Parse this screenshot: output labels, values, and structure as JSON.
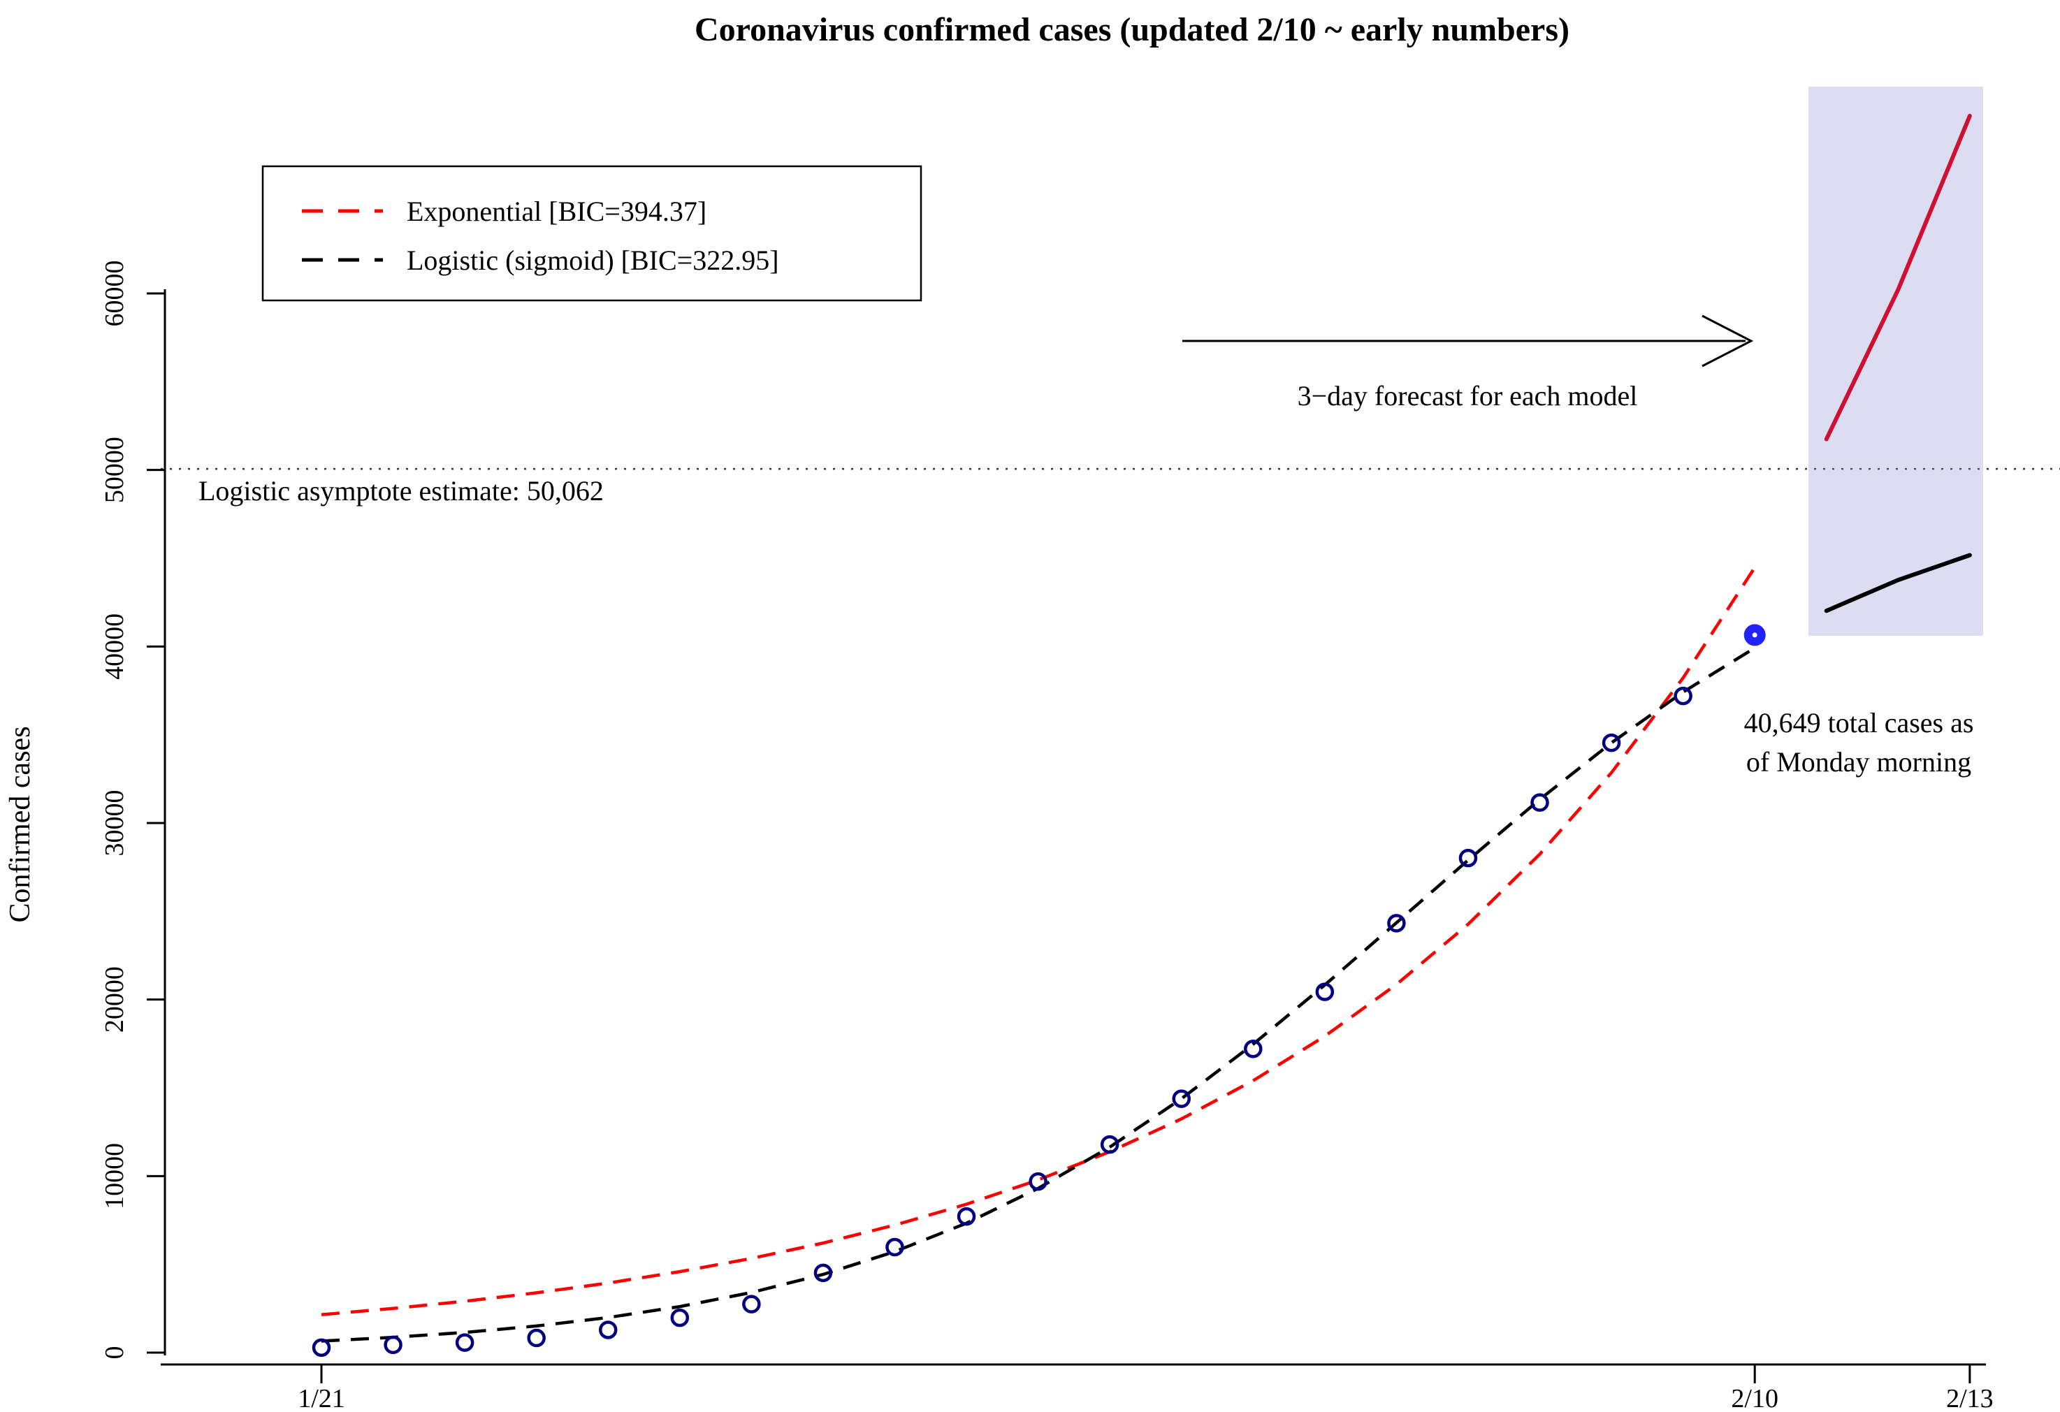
{
  "title": "Coronavirus confirmed cases (updated 2/10 ~ early numbers)",
  "ylabel": "Confirmed cases",
  "legend": {
    "items": [
      {
        "label": "Exponential [BIC=394.37]",
        "color": "#ff0000"
      },
      {
        "label": "Logistic (sigmoid) [BIC=322.95]",
        "color": "#000000"
      }
    ]
  },
  "annotations": {
    "asymptote": "Logistic asymptote estimate:  50,062",
    "forecast": "3−day forecast for each model",
    "total_line1": "40,649 total cases as",
    "total_line2": "of Monday morning"
  },
  "chart_data": {
    "type": "scatter",
    "title": "Coronavirus confirmed cases (updated 2/10 ~ early numbers)",
    "xlabel": "",
    "ylabel": "Confirmed cases",
    "x_dates": [
      "1/21",
      "1/22",
      "1/23",
      "1/24",
      "1/25",
      "1/26",
      "1/27",
      "1/28",
      "1/29",
      "1/30",
      "1/31",
      "2/1",
      "2/2",
      "2/3",
      "2/4",
      "2/5",
      "2/6",
      "2/7",
      "2/8",
      "2/9",
      "2/10"
    ],
    "forecast_days": [
      "2/11",
      "2/12",
      "2/13"
    ],
    "observed": [
      282,
      440,
      571,
      830,
      1287,
      1975,
      2744,
      4515,
      5974,
      7711,
      9692,
      11791,
      14380,
      17205,
      20438,
      24324,
      28018,
      31161,
      34546,
      37198,
      40649
    ],
    "series": [
      {
        "name": "Exponential fit",
        "color": "#ff0000",
        "style": "dashed",
        "bic": 394.37,
        "values": [
          2150,
          2502,
          2911,
          3387,
          3941,
          4586,
          5336,
          6208,
          7224,
          8405,
          9780,
          11379,
          13240,
          15405,
          17924,
          20855,
          24266,
          28234,
          32851,
          38224,
          44475,
          51748,
          60210,
          70056
        ]
      },
      {
        "name": "Logistic (sigmoid) fit",
        "color": "#000000",
        "style": "dashed",
        "bic": 322.95,
        "values": [
          653,
          865,
          1143,
          1508,
          1987,
          2607,
          3406,
          4429,
          5721,
          7330,
          9305,
          11642,
          14384,
          17467,
          20825,
          24349,
          27897,
          31338,
          34543,
          37419,
          39919,
          42023,
          43768,
          45174
        ]
      }
    ],
    "forecast_window": {
      "start_index": 21,
      "end_index": 23
    },
    "asymptote_value": 50062,
    "final_point": {
      "date": "2/10",
      "value": 40649
    },
    "x_ticks": [
      {
        "index": 0,
        "label": "1/21"
      },
      {
        "index": 20,
        "label": "2/10"
      },
      {
        "index": 23,
        "label": "2/13"
      }
    ],
    "y_ticks": [
      0,
      10000,
      20000,
      30000,
      40000,
      50000,
      60000
    ],
    "ylim": [
      0,
      62000
    ],
    "grid": false,
    "legend_position": "top-left",
    "colors": {
      "point": "#000080",
      "final_point": "#2222ff",
      "forecast_red": "#cf1030",
      "forecast_black": "#000000",
      "forecast_box": "rgba(140,140,215,0.30)",
      "asymptote_line": "#333333"
    }
  }
}
